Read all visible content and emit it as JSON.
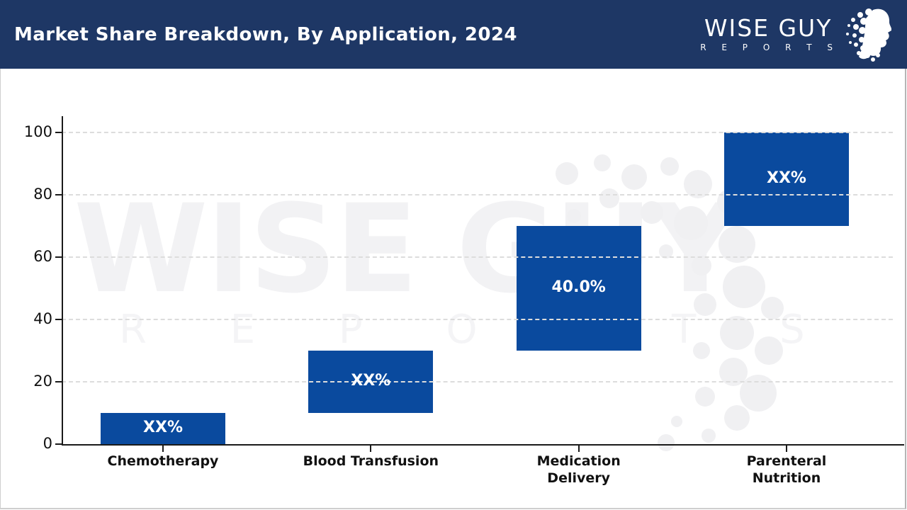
{
  "header": {
    "title": "Market Share Breakdown, By Application, 2024",
    "logo": {
      "line1": "WISE GUY",
      "line2": "R E P O R T S"
    }
  },
  "watermark": {
    "line1": "WISE GUY",
    "line2": "R E P O R T S"
  },
  "colors": {
    "header_bg": "#1e3765",
    "bar": "#0a4a9e",
    "gridline": "#dcdcdc",
    "axis": "#1a1a1a",
    "watermark": "#f2f2f4",
    "frame": "#cfcfcf",
    "bar_label_text": "#ffffff"
  },
  "chart_data": {
    "type": "bar",
    "subtype": "floating-waterfall",
    "title": "Market Share Breakdown, By Application, 2024",
    "categories": [
      "Chemotherapy",
      "Blood Transfusion",
      "Medication\nDelivery",
      "Parenteral\nNutrition"
    ],
    "segments": [
      {
        "category": "Chemotherapy",
        "from": 0,
        "to": 10,
        "label": "XX%"
      },
      {
        "category": "Blood Transfusion",
        "from": 10,
        "to": 30,
        "label": "XX%"
      },
      {
        "category": "Medication Delivery",
        "from": 30,
        "to": 70,
        "label": "40.0%"
      },
      {
        "category": "Parenteral Nutrition",
        "from": 70,
        "to": 100,
        "label": "XX%"
      }
    ],
    "yticks": [
      0,
      20,
      40,
      60,
      80,
      100
    ],
    "ylim": [
      0,
      100
    ],
    "xlabel": "",
    "ylabel": "",
    "grid": "horizontal-dashed-over-bars",
    "legend": "none",
    "bar_color": "#0a4a9e"
  }
}
